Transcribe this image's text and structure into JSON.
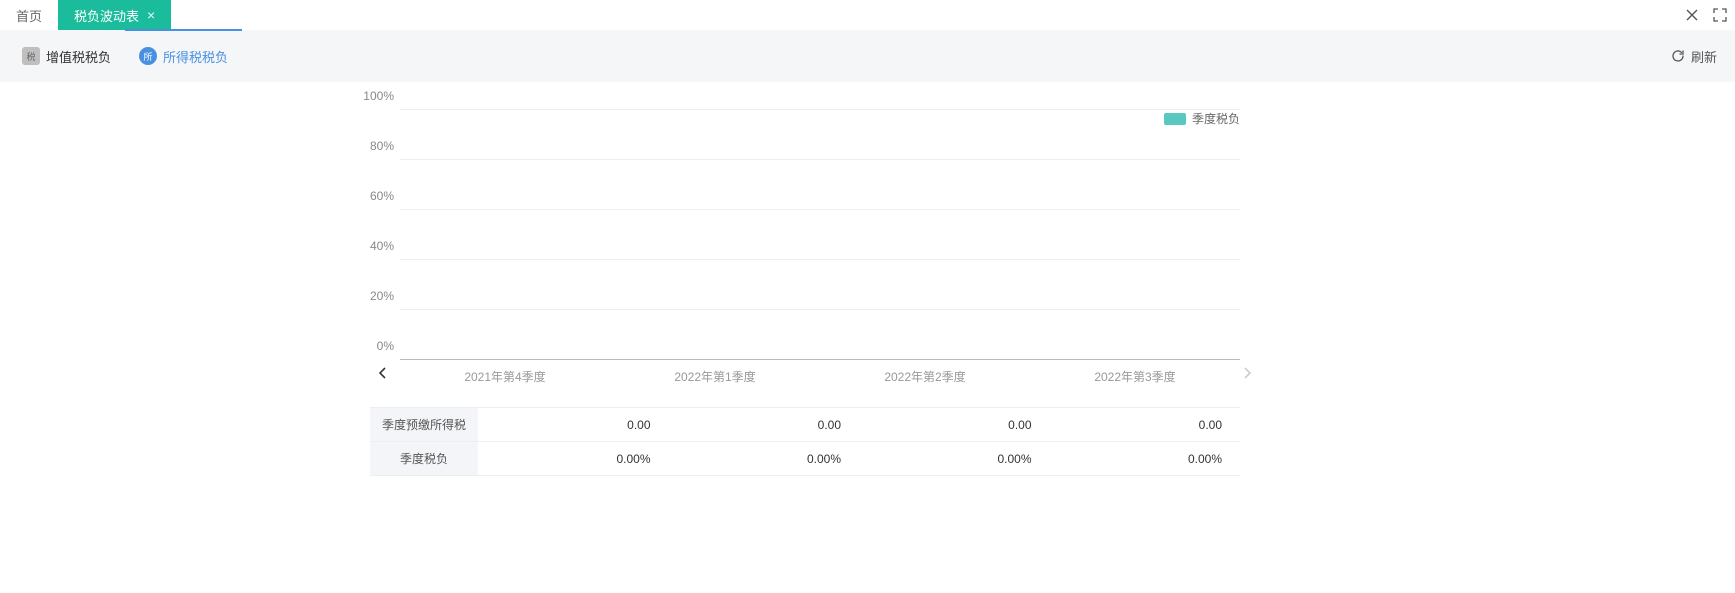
{
  "top_tabs": {
    "home": "首页",
    "active": "税负波动表"
  },
  "sub_tabs": {
    "vat": "增值税税负",
    "income": "所得税税负"
  },
  "refresh_label": "刷新",
  "chart": {
    "type": "bar",
    "legend_label": "季度税负",
    "legend_color": "#5bc8c0",
    "y_ticks": [
      "0%",
      "20%",
      "40%",
      "60%",
      "80%",
      "100%"
    ],
    "ylim": [
      0,
      100
    ],
    "grid_color": "#eeeeee",
    "axis_color": "#bbbbbb",
    "label_color": "#999999",
    "categories": [
      "2021年第4季度",
      "2022年第1季度",
      "2022年第2季度",
      "2022年第3季度"
    ],
    "values": [
      0,
      0,
      0,
      0
    ]
  },
  "table": {
    "rows": [
      {
        "label": "季度预缴所得税",
        "cells": [
          "0.00",
          "0.00",
          "0.00",
          "0.00"
        ]
      },
      {
        "label": "季度税负",
        "cells": [
          "0.00%",
          "0.00%",
          "0.00%",
          "0.00%"
        ]
      }
    ]
  }
}
